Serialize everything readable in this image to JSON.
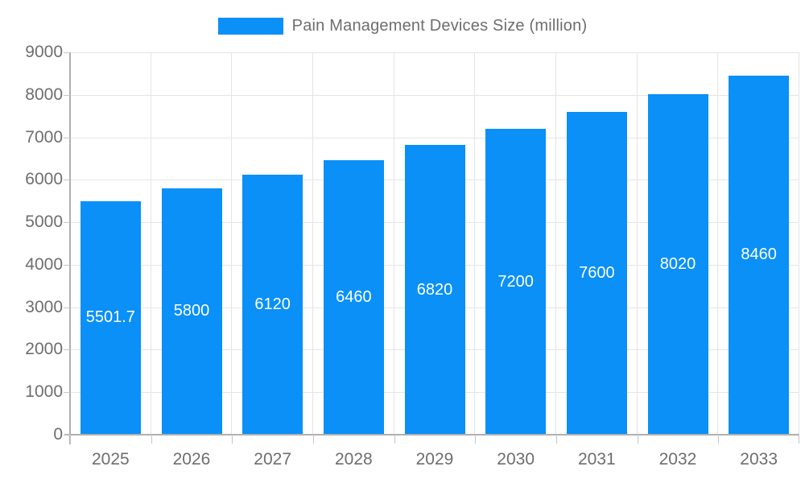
{
  "legend": {
    "label": "Pain Management Devices Size (million)"
  },
  "colors": {
    "bar": "#0a90f7",
    "gridline": "#e5e5e5",
    "axis": "#b0b0b0",
    "tick": "#c6c6c6",
    "axis_text": "#6e6e6e",
    "value_label_text": "#ffffff",
    "background": "#ffffff"
  },
  "chart_data": {
    "type": "bar",
    "title": "Pain Management Devices Size (million)",
    "categories": [
      "2025",
      "2026",
      "2027",
      "2028",
      "2029",
      "2030",
      "2031",
      "2032",
      "2033"
    ],
    "series": [
      {
        "name": "Pain Management Devices Size (million)",
        "values": [
          5501.7,
          5800,
          6120,
          6460,
          6820,
          7200,
          7600,
          8020,
          8460
        ]
      }
    ],
    "value_labels": [
      "5501.7",
      "5800",
      "6120",
      "6460",
      "6820",
      "7200",
      "7600",
      "8020",
      "8460"
    ],
    "xlabel": "",
    "ylabel": "",
    "ylim": [
      0,
      9000
    ],
    "y_tick_step": 1000,
    "y_tick_labels": [
      "0",
      "1000",
      "2000",
      "3000",
      "4000",
      "5000",
      "6000",
      "7000",
      "8000",
      "9000"
    ],
    "grid": true,
    "legend_position": "top",
    "value_label_placement": "inside-center"
  }
}
